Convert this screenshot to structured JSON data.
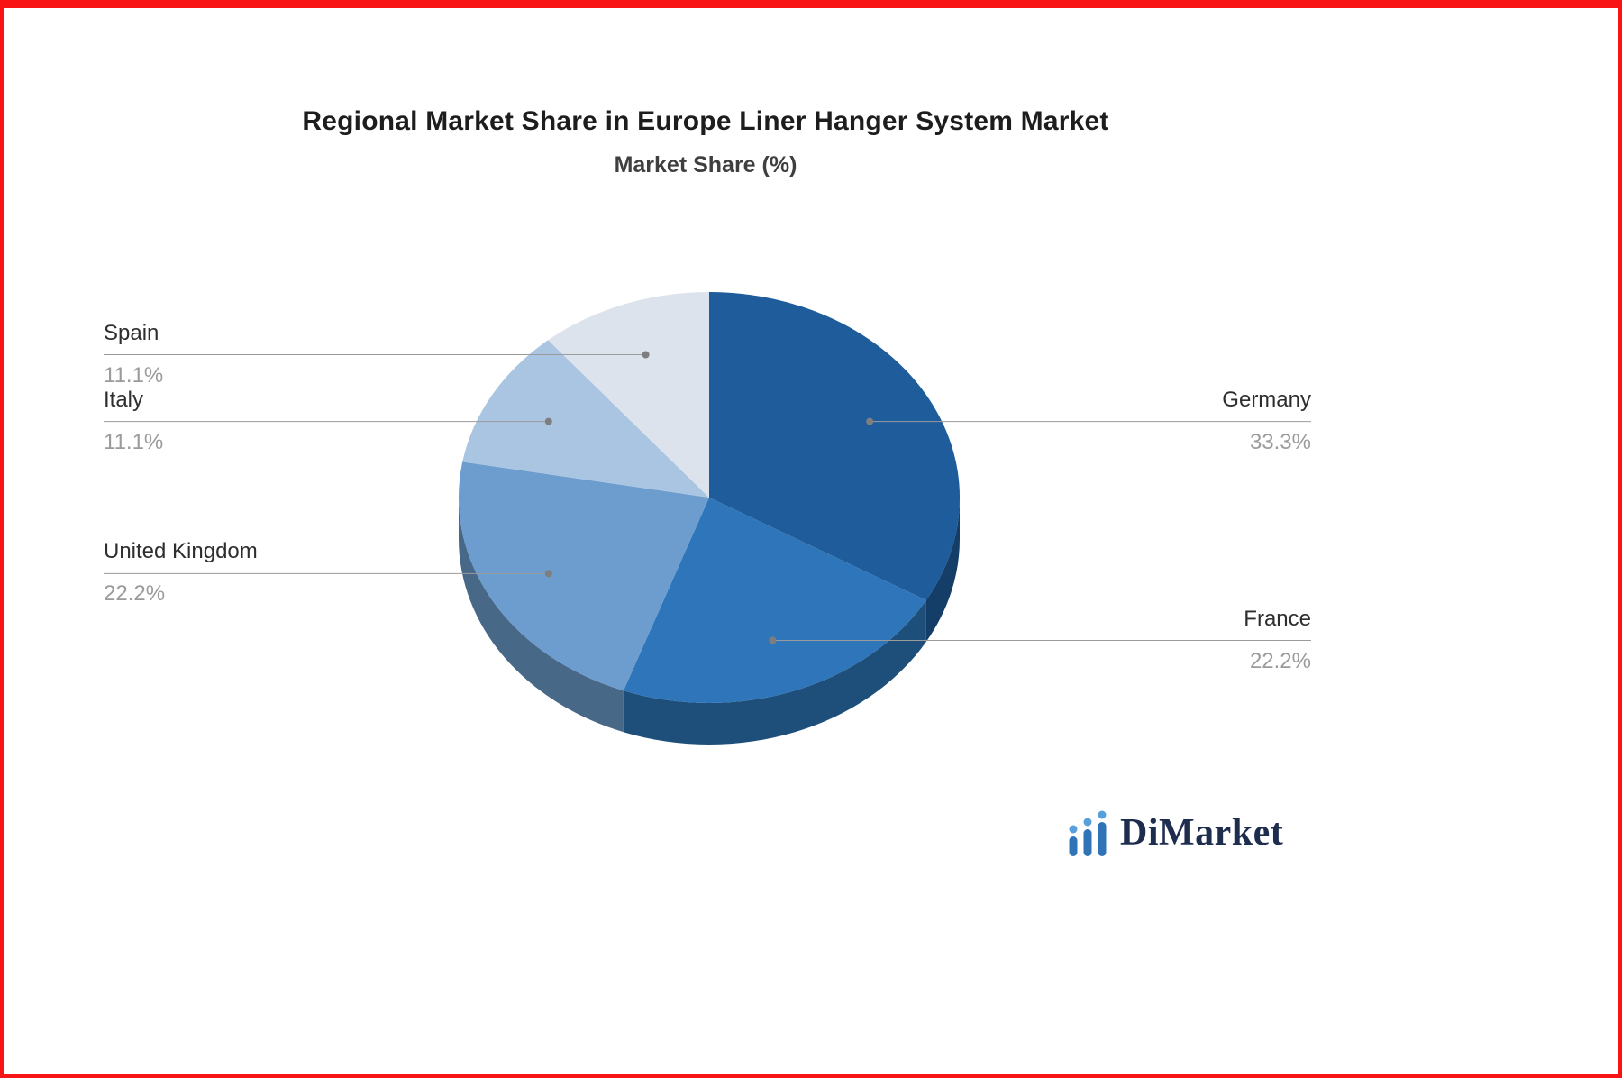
{
  "chart_data": {
    "type": "pie",
    "style": "3d",
    "direction": "clockwise",
    "start_angle": "12-oclock",
    "title": "Regional Market Share in Europe Liner Hanger System Market",
    "subtitle": "Market Share (%)",
    "unit": "%",
    "labels": [
      "Germany",
      "France",
      "United Kingdom",
      "Italy",
      "Spain"
    ],
    "values": [
      33.3,
      22.2,
      22.2,
      11.1,
      11.1
    ],
    "value_labels": [
      "33.3%",
      "22.2%",
      "22.2%",
      "11.1%",
      "11.1%"
    ],
    "colors": [
      "#1e5c9c",
      "#2e76b9",
      "#6d9dce",
      "#a9c5e2",
      "#dde3ed"
    ],
    "label_color": "#2e2e2e",
    "value_color": "#9b9b9b",
    "leader_line_color": "#9b9b9b",
    "legend_position": "callout-labels"
  },
  "brand": {
    "name": "DiMarket",
    "icon": "bar-chart-logo-icon",
    "icon_color": "#2f74b6",
    "icon_dot_color": "#58a0dc",
    "text_color": "#1e2c4e"
  },
  "theme": {
    "page_background": "#ffffff",
    "border_color": "#f81414"
  }
}
